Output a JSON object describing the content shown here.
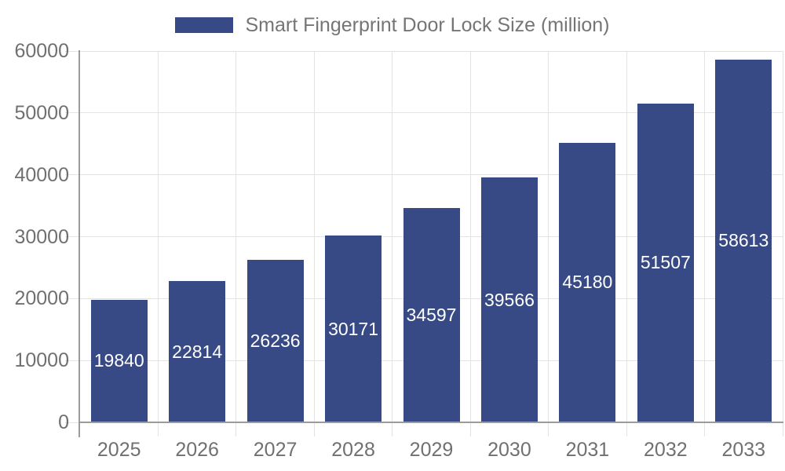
{
  "chart": {
    "legend": {
      "label": "Smart Fingerprint Door Lock Size (million)"
    },
    "colors": {
      "bar": "#384a85",
      "grid": "#e3e3e3",
      "axis": "#9b9b9b",
      "axis_label": "#707070",
      "legend_text": "#757575",
      "bar_label": "#ffffff",
      "background": "#ffffff"
    }
  },
  "chart_data": {
    "type": "bar",
    "title": "Smart Fingerprint Door Lock Size (million)",
    "categories": [
      "2025",
      "2026",
      "2027",
      "2028",
      "2029",
      "2030",
      "2031",
      "2032",
      "2033"
    ],
    "values": [
      19840,
      22814,
      26236,
      30171,
      34597,
      39566,
      45180,
      51507,
      58613
    ],
    "xlabel": "",
    "ylabel": "",
    "ylim": [
      0,
      60000
    ],
    "yticks": [
      0,
      10000,
      20000,
      30000,
      40000,
      50000,
      60000
    ],
    "grid": true,
    "legend_position": "top",
    "value_labels": "inside-center"
  }
}
